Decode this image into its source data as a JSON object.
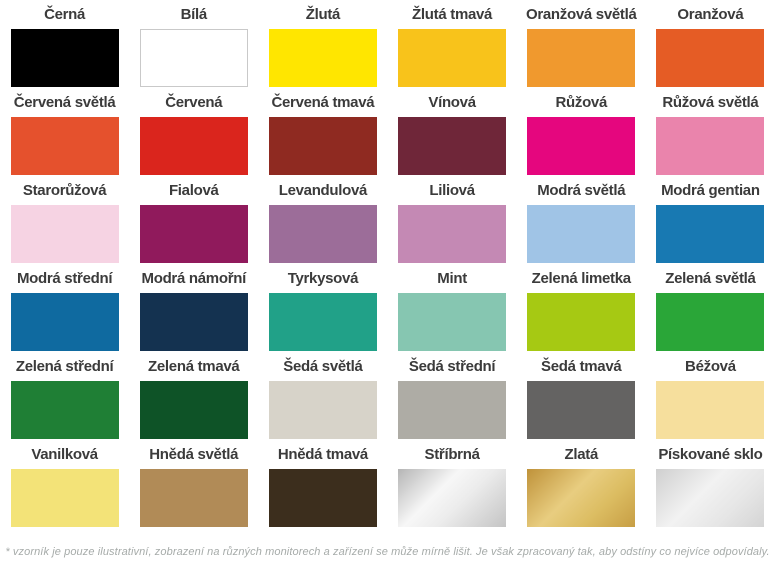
{
  "page": {
    "background": "#ffffff",
    "label_color": "#3b3b3b"
  },
  "palette": {
    "columns": 6,
    "swatches": [
      {
        "label": "Černá",
        "color": "#000000"
      },
      {
        "label": "Bílá",
        "color": "#ffffff",
        "border": "#c9c9c9"
      },
      {
        "label": "Žlutá",
        "color": "#ffe600"
      },
      {
        "label": "Žlutá tmavá",
        "color": "#f8c31b"
      },
      {
        "label": "Oranžová světlá",
        "color": "#f0992e"
      },
      {
        "label": "Oranžová",
        "color": "#e55c25"
      },
      {
        "label": "Červená světlá",
        "color": "#e5512d"
      },
      {
        "label": "Červená",
        "color": "#da251d"
      },
      {
        "label": "Červená tmavá",
        "color": "#8f2a21"
      },
      {
        "label": "Vínová",
        "color": "#6f2639"
      },
      {
        "label": "Růžová",
        "color": "#e5067e"
      },
      {
        "label": "Růžová světlá",
        "color": "#ea84ac"
      },
      {
        "label": "Starorůžová",
        "color": "#f6d3e3"
      },
      {
        "label": "Fialová",
        "color": "#901a5c"
      },
      {
        "label": "Levandulová",
        "color": "#9c6d99"
      },
      {
        "label": "Liliová",
        "color": "#c489b4"
      },
      {
        "label": "Modrá světlá",
        "color": "#a0c4e6"
      },
      {
        "label": "Modrá gentian",
        "color": "#1879b2"
      },
      {
        "label": "Modrá střední",
        "color": "#0f6aa0"
      },
      {
        "label": "Modrá námořní",
        "color": "#143250"
      },
      {
        "label": "Tyrkysová",
        "color": "#21a188"
      },
      {
        "label": "Mint",
        "color": "#86c6b1"
      },
      {
        "label": "Zelená limetka",
        "color": "#a6c913"
      },
      {
        "label": "Zelená světlá",
        "color": "#2aa638"
      },
      {
        "label": "Zelená střední",
        "color": "#1f7f35"
      },
      {
        "label": "Zelená tmavá",
        "color": "#0e5327"
      },
      {
        "label": "Šedá světlá",
        "color": "#d7d3c9"
      },
      {
        "label": "Šedá střední",
        "color": "#aeaca5"
      },
      {
        "label": "Šedá tmavá",
        "color": "#646362"
      },
      {
        "label": "Béžová",
        "color": "#f6df9d"
      },
      {
        "label": "Vanilková",
        "color": "#f3e378"
      },
      {
        "label": "Hnědá světlá",
        "color": "#b18b57"
      },
      {
        "label": "Hnědá tmavá",
        "color": "#3c2e1d"
      },
      {
        "label": "Stříbrná",
        "effect": "silver"
      },
      {
        "label": "Zlatá",
        "effect": "gold"
      },
      {
        "label": "Pískované sklo",
        "effect": "frosted-glass"
      }
    ]
  },
  "footnote": {
    "text": "* vzorník je pouze ilustrativní, zobrazení na různých monitorech a zařízení se může mírně lišit. Je však zpracovaný tak, aby odstíny co nejvíce odpovídaly."
  }
}
